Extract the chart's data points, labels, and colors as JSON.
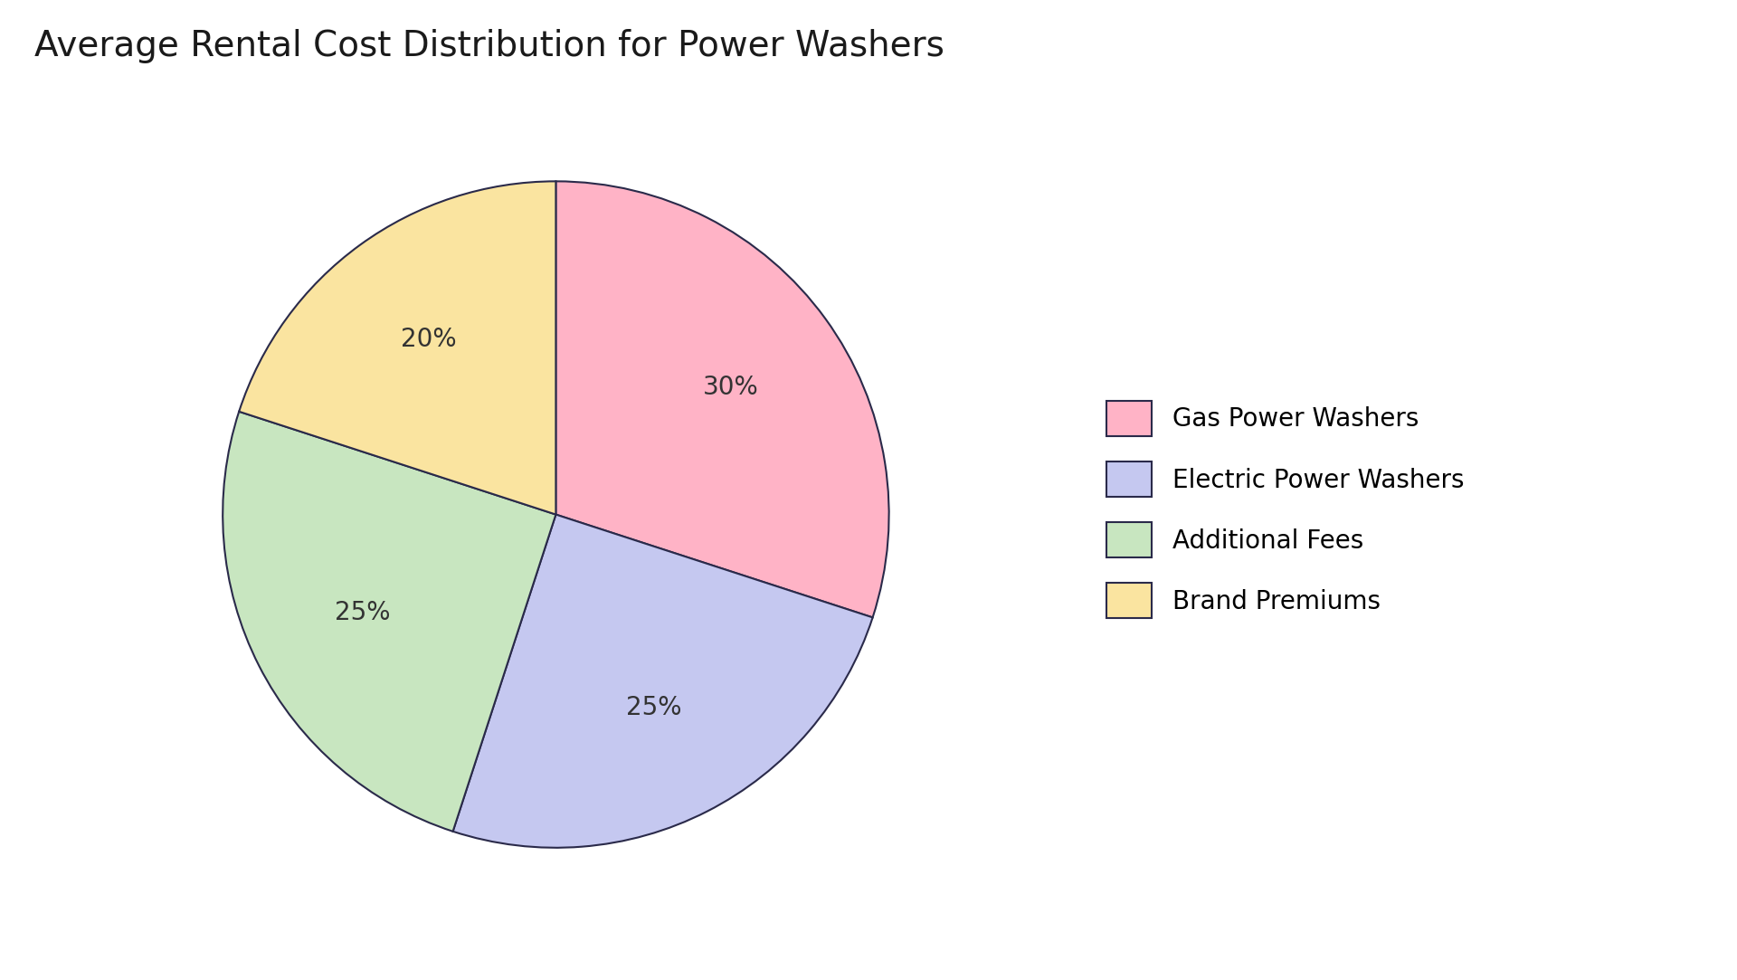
{
  "title": "Average Rental Cost Distribution for Power Washers",
  "title_fontsize": 28,
  "title_color": "#1a1a1a",
  "background_color": "#ffffff",
  "labels": [
    "Gas Power Washers",
    "Electric Power Washers",
    "Additional Fees",
    "Brand Premiums"
  ],
  "values": [
    30,
    25,
    25,
    20
  ],
  "colors": [
    "#FFB3C6",
    "#C5C8F0",
    "#C8E6C0",
    "#FAE4A0"
  ],
  "startangle": 90,
  "autopct_fontsize": 20,
  "legend_fontsize": 20,
  "edge_color": "#2a2a4a",
  "edge_width": 1.5,
  "pctdistance": 0.65
}
